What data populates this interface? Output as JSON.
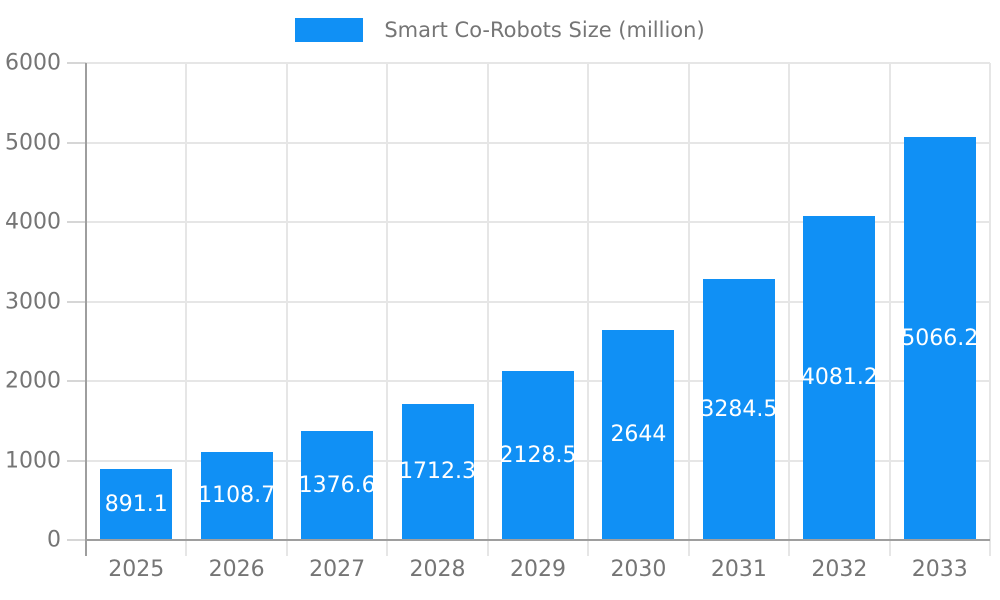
{
  "chart_data": {
    "type": "bar",
    "title": "Smart Co-Robots Size (million)",
    "legend_position": "top-center",
    "categories": [
      "2025",
      "2026",
      "2027",
      "2028",
      "2029",
      "2030",
      "2031",
      "2032",
      "2033"
    ],
    "values": [
      891.1,
      1108.7,
      1376.6,
      1712.3,
      2128.5,
      2644,
      3284.5,
      4081.2,
      5066.2
    ],
    "value_labels": [
      "891.1",
      "1108.7",
      "1376.6",
      "1712.3",
      "2128.5",
      "2644",
      "3284.5",
      "4081.2",
      "5066.2"
    ],
    "yticks": [
      0,
      1000,
      2000,
      3000,
      4000,
      5000,
      6000
    ],
    "ylim": [
      0,
      6000
    ],
    "ytick_step": 1000,
    "grid": true,
    "colors": {
      "bar": "#1090F5",
      "value_text": "#FFFFFF",
      "axis_text": "#757575",
      "grid_line": "#E6E6E6",
      "tick": "#D6D6D6",
      "axis_line": "#9E9E9E",
      "background": "#FFFFFF"
    }
  }
}
